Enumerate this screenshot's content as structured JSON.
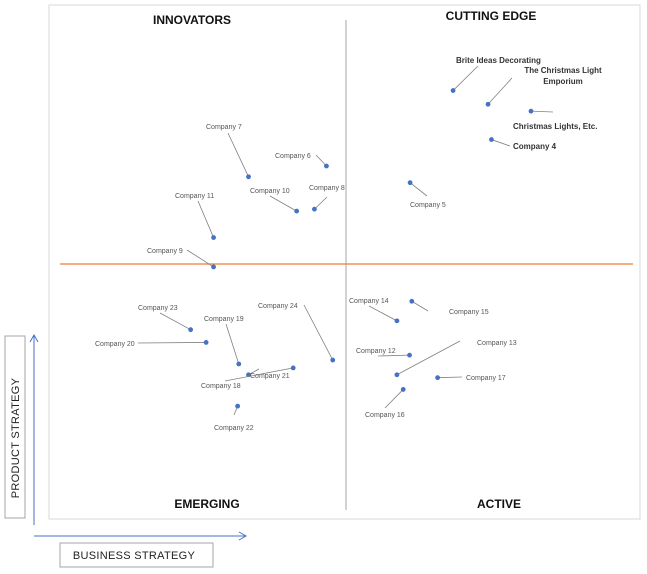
{
  "chart_data": {
    "type": "scatter",
    "xlabel": "BUSINESS STRATEGY",
    "ylabel": "PRODUCT STRATEGY",
    "quadrants": {
      "top_left": "INNOVATORS",
      "top_right": "CUTTING EDGE",
      "bottom_left": "EMERGING",
      "bottom_right": "ACTIVE"
    },
    "xlim": [
      0,
      100
    ],
    "ylim": [
      0,
      100
    ],
    "colors": {
      "point": "#4472c4",
      "h_divider": "#ed7d31",
      "v_divider": "#a6a6a6",
      "leader": "#808080",
      "axis_arrow": "#4472c4"
    },
    "points": [
      {
        "name": "Brite Ideas Decorating",
        "x": 68.6,
        "y": 85.6,
        "bold": true
      },
      {
        "name": "The Christmas Light Emporium",
        "x": 74.7,
        "y": 82.8,
        "bold": true
      },
      {
        "name": "Christmas Lights, Etc.",
        "x": 82.2,
        "y": 81.4,
        "bold": true
      },
      {
        "name": "Company 4",
        "x": 75.3,
        "y": 75.6,
        "bold": true
      },
      {
        "name": "Company 5",
        "x": 61.1,
        "y": 66.8,
        "bold": false
      },
      {
        "name": "Company 6",
        "x": 46.5,
        "y": 70.2,
        "bold": false
      },
      {
        "name": "Company 7",
        "x": 32.9,
        "y": 68.0,
        "bold": false
      },
      {
        "name": "Company 8",
        "x": 44.4,
        "y": 61.4,
        "bold": false
      },
      {
        "name": "Company 10",
        "x": 41.3,
        "y": 61.0,
        "bold": false
      },
      {
        "name": "Company 11",
        "x": 26.8,
        "y": 55.6,
        "bold": false
      },
      {
        "name": "Company 9",
        "x": 26.8,
        "y": 49.6,
        "bold": false
      },
      {
        "name": "Company 14",
        "x": 58.8,
        "y": 38.6,
        "bold": false
      },
      {
        "name": "Company 15",
        "x": 61.4,
        "y": 42.6,
        "bold": false
      },
      {
        "name": "Company 23",
        "x": 22.8,
        "y": 36.8,
        "bold": false
      },
      {
        "name": "Company 20",
        "x": 25.5,
        "y": 34.2,
        "bold": false
      },
      {
        "name": "Company 24",
        "x": 47.6,
        "y": 30.6,
        "bold": false
      },
      {
        "name": "Company 19",
        "x": 31.2,
        "y": 29.8,
        "bold": false
      },
      {
        "name": "Company 12",
        "x": 61.0,
        "y": 31.6,
        "bold": false
      },
      {
        "name": "Company 13",
        "x": 58.8,
        "y": 27.6,
        "bold": false
      },
      {
        "name": "Company 21",
        "x": 32.9,
        "y": 27.6,
        "bold": false
      },
      {
        "name": "Company 18",
        "x": 40.7,
        "y": 29.0,
        "bold": false
      },
      {
        "name": "Company 17",
        "x": 65.9,
        "y": 27.0,
        "bold": false
      },
      {
        "name": "Company 16",
        "x": 59.9,
        "y": 24.6,
        "bold": false
      },
      {
        "name": "Company 22",
        "x": 31.0,
        "y": 21.2,
        "bold": false
      }
    ]
  }
}
